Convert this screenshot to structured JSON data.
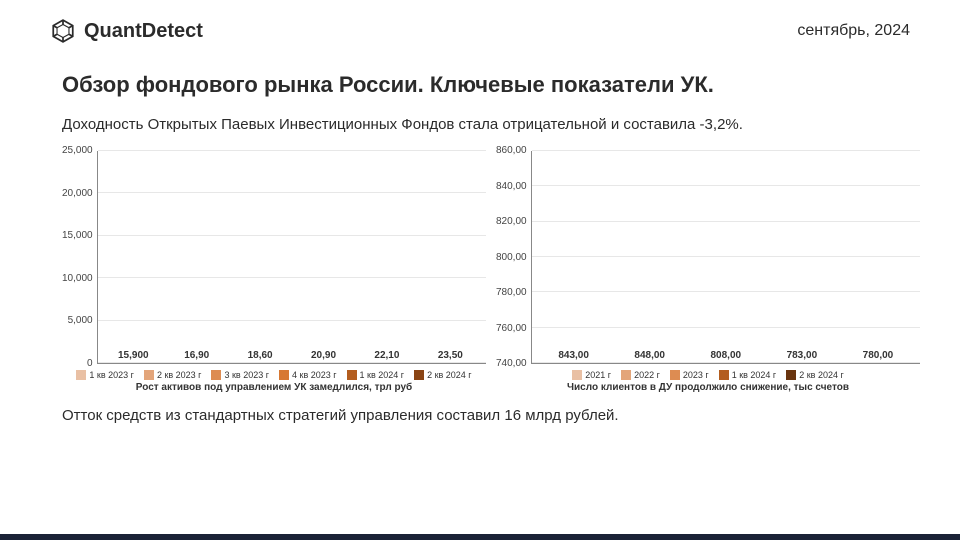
{
  "header": {
    "brand": "QuantDetect",
    "date": "сентябрь, 2024"
  },
  "title": "Обзор фондового рынка России. Ключевые показатели УК.",
  "subtitle": "Доходность Открытых Паевых Инвестиционных Фондов стала отрицательной и составила -3,2%.",
  "footer_note": "Отток средств из стандартных стратегий управления составил 16 млрд рублей.",
  "chart_left": {
    "type": "bar",
    "caption": "Рост активов под управлением УК замедлился, трл руб",
    "ylim": [
      0,
      25000
    ],
    "ytick_step": 5000,
    "yticks": [
      "25,000",
      "20,000",
      "15,000",
      "10,000",
      "5,000",
      "0"
    ],
    "categories": [
      "1 кв 2023 г",
      "2 кв 2023 г",
      "3 кв 2023 г",
      "4 кв 2023 г",
      "1 кв 2024 г",
      "2 кв 2024 г"
    ],
    "values": [
      15900,
      16900,
      18600,
      20900,
      22100,
      23500
    ],
    "value_labels": [
      "15,900",
      "16,90",
      "18,60",
      "20,90",
      "22,10",
      "23,50"
    ],
    "bar_colors": [
      "#e9c0a4",
      "#e3a57a",
      "#dd8c52",
      "#d77833",
      "#b35d1f",
      "#8a4414"
    ],
    "grid_color": "#e7e7e7",
    "axis_color": "#888888",
    "label_fontsize": 10,
    "legend_fontsize": 9,
    "bar_width": 0.82
  },
  "chart_right": {
    "type": "bar",
    "caption": "Число клиентов в ДУ продолжило снижение, тыс счетов",
    "ylim": [
      740,
      860
    ],
    "ytick_step": 20,
    "yticks": [
      "860,00",
      "840,00",
      "820,00",
      "800,00",
      "780,00",
      "760,00",
      "740,00"
    ],
    "categories": [
      "2021 г",
      "2022 г",
      "2023 г",
      "1 кв 2024 г",
      "2 кв 2024 г"
    ],
    "values": [
      843,
      848,
      808,
      783,
      780
    ],
    "value_labels": [
      "843,00",
      "848,00",
      "808,00",
      "783,00",
      "780,00"
    ],
    "bar_colors": [
      "#e9c0a4",
      "#e3a57a",
      "#dd8c52",
      "#b35d1f",
      "#6a350f"
    ],
    "grid_color": "#e7e7e7",
    "axis_color": "#888888",
    "label_fontsize": 10,
    "legend_fontsize": 9,
    "bar_width": 0.82
  },
  "colors": {
    "text": "#2b2b2b",
    "background": "#ffffff",
    "bottom_bar": "#1a2236"
  }
}
